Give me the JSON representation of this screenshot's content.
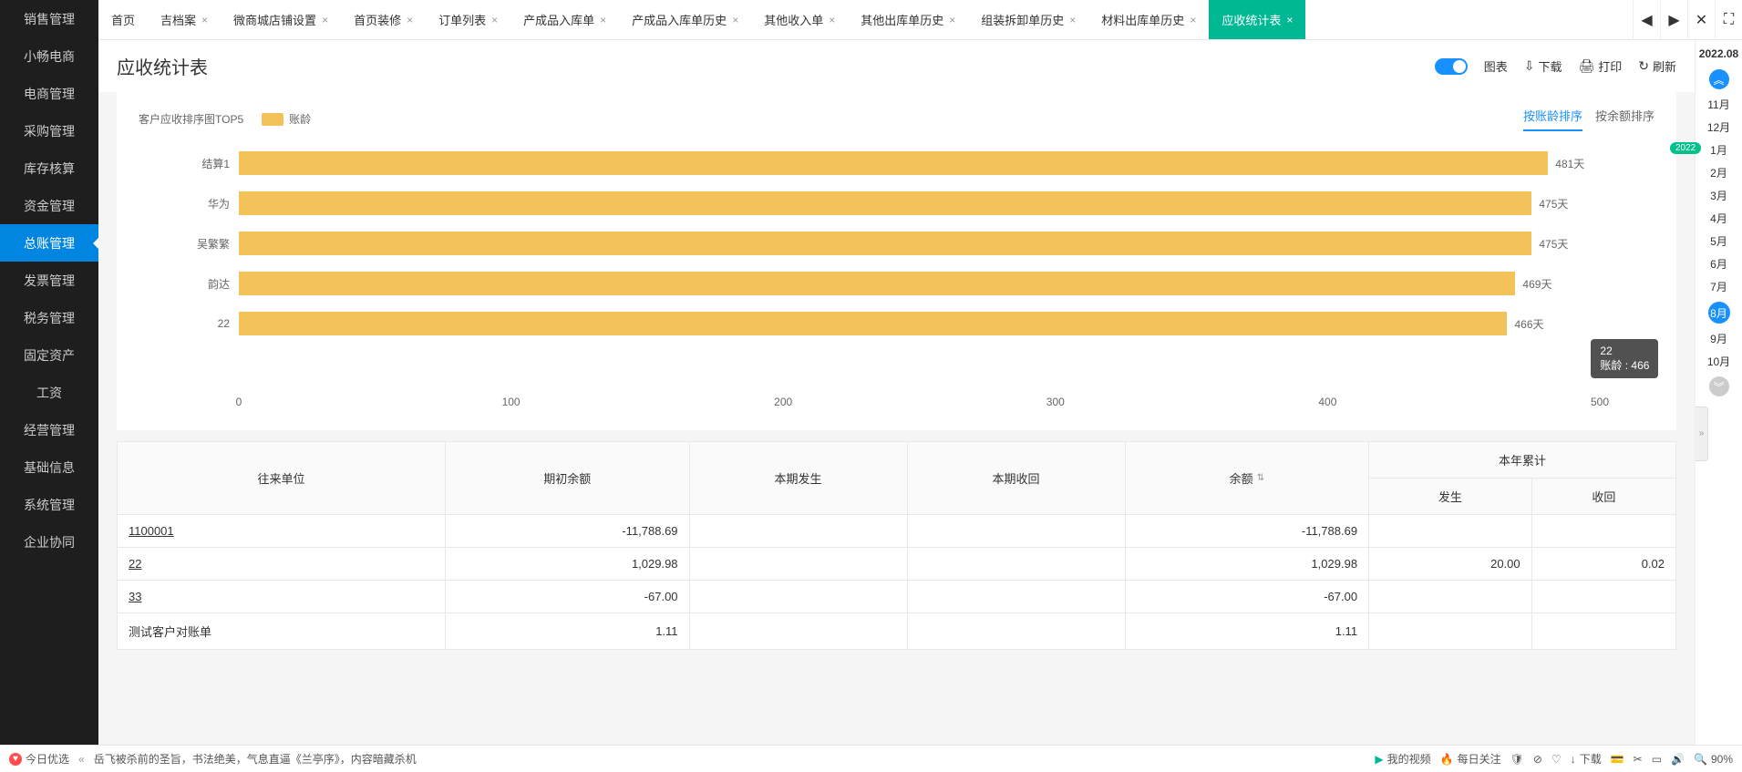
{
  "sidebar": {
    "items": [
      {
        "label": "销售管理"
      },
      {
        "label": "小畅电商"
      },
      {
        "label": "电商管理"
      },
      {
        "label": "采购管理"
      },
      {
        "label": "库存核算"
      },
      {
        "label": "资金管理"
      },
      {
        "label": "总账管理",
        "active": true
      },
      {
        "label": "发票管理"
      },
      {
        "label": "税务管理"
      },
      {
        "label": "固定资产"
      },
      {
        "label": "工资"
      },
      {
        "label": "经营管理"
      },
      {
        "label": "基础信息"
      },
      {
        "label": "系统管理"
      },
      {
        "label": "企业协同"
      }
    ]
  },
  "tabs": {
    "items": [
      {
        "label": "首页",
        "closable": false
      },
      {
        "label": "吉档案",
        "closable": true
      },
      {
        "label": "微商城店铺设置",
        "closable": true
      },
      {
        "label": "首页装修",
        "closable": true
      },
      {
        "label": "订单列表",
        "closable": true
      },
      {
        "label": "产成品入库单",
        "closable": true
      },
      {
        "label": "产成品入库单历史",
        "closable": true
      },
      {
        "label": "其他收入单",
        "closable": true
      },
      {
        "label": "其他出库单历史",
        "closable": true
      },
      {
        "label": "组装拆卸单历史",
        "closable": true
      },
      {
        "label": "材料出库单历史",
        "closable": true
      },
      {
        "label": "应收统计表",
        "closable": true,
        "active": true
      }
    ]
  },
  "page": {
    "title": "应收统计表",
    "actions": {
      "chart_label": "图表",
      "download_label": "下载",
      "print_label": "打印",
      "refresh_label": "刷新"
    }
  },
  "chart": {
    "type": "bar-horizontal",
    "title": "客户应收排序图TOP5",
    "legend": {
      "label": "账龄",
      "color": "#f3c258"
    },
    "sort_tabs": [
      {
        "label": "按账龄排序",
        "active": true
      },
      {
        "label": "按余额排序",
        "active": false
      }
    ],
    "x_max": 500,
    "x_ticks": [
      0,
      100,
      200,
      300,
      400,
      500
    ],
    "value_suffix": "天",
    "bar_color": "#f3c258",
    "series": [
      {
        "name": "结算1",
        "value": 481
      },
      {
        "name": "华为",
        "value": 475
      },
      {
        "name": "吴繁繁",
        "value": 475
      },
      {
        "name": "韵达",
        "value": 469
      },
      {
        "name": "22",
        "value": 466
      }
    ],
    "tooltip": {
      "name": "22",
      "label": "账龄",
      "value": 466
    }
  },
  "table": {
    "columns": {
      "partner": "往来单位",
      "open_balance": "期初余额",
      "period_occur": "本期发生",
      "period_collect": "本期收回",
      "balance": "余额",
      "ytd": "本年累计",
      "ytd_occur": "发生",
      "ytd_collect": "收回"
    },
    "rows": [
      {
        "partner": "1100001",
        "link": true,
        "open_balance": "-11,788.69",
        "period_occur": "",
        "period_collect": "",
        "balance": "-11,788.69",
        "ytd_occur": "",
        "ytd_collect": ""
      },
      {
        "partner": "22",
        "link": true,
        "open_balance": "1,029.98",
        "period_occur": "",
        "period_collect": "",
        "balance": "1,029.98",
        "ytd_occur": "20.00",
        "ytd_collect": "0.02"
      },
      {
        "partner": "33",
        "link": true,
        "open_balance": "-67.00",
        "period_occur": "",
        "period_collect": "",
        "balance": "-67.00",
        "ytd_occur": "",
        "ytd_collect": ""
      },
      {
        "partner": "测试客户对账单",
        "link": false,
        "open_balance": "1.11",
        "period_occur": "",
        "period_collect": "",
        "balance": "1.11",
        "ytd_occur": "",
        "ytd_collect": ""
      }
    ]
  },
  "date_strip": {
    "header": "2022.08",
    "year_badge": "2022",
    "months": [
      "11月",
      "12月",
      "1月",
      "2月",
      "3月",
      "4月",
      "5月",
      "6月",
      "7月",
      "8月",
      "9月",
      "10月"
    ],
    "current": "8月"
  },
  "bottom_bar": {
    "favorite": "今日优选",
    "news": "岳飞被杀前的圣旨，书法绝美，气息直逼《兰亭序》，内容暗藏杀机",
    "my_video": "我的视频",
    "daily": "每日关注",
    "download": "下载",
    "zoom": "90%"
  }
}
